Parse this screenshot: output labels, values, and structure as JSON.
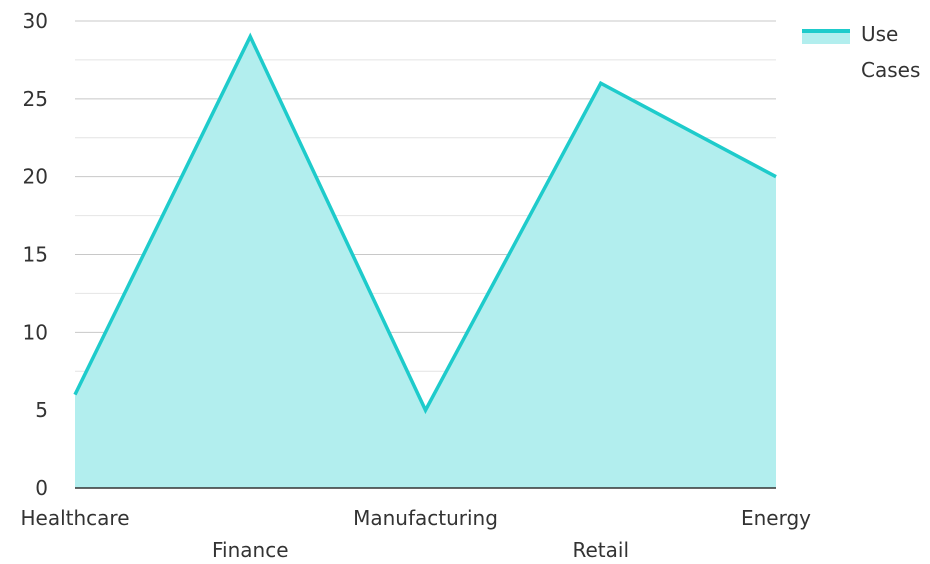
{
  "chart_data": {
    "type": "area",
    "categories": [
      "Healthcare",
      "Finance",
      "Manufacturing",
      "Retail",
      "Energy"
    ],
    "series": [
      {
        "name": "Use Cases",
        "values": [
          6,
          29,
          5,
          26,
          20
        ],
        "color": "#1ECBCB",
        "fill_color": "#B2EEEE"
      }
    ],
    "ylim": [
      0,
      30
    ],
    "y_ticks": [
      "0",
      "5",
      "10",
      "15",
      "20",
      "25",
      "30"
    ],
    "grid": true,
    "legend": {
      "position": "top-right",
      "label_lines": [
        "Use",
        "Cases"
      ]
    },
    "colors": {
      "gridline": "#C8C8C8",
      "minor_gridline": "#E4E4E4",
      "axis": "#333333"
    }
  }
}
